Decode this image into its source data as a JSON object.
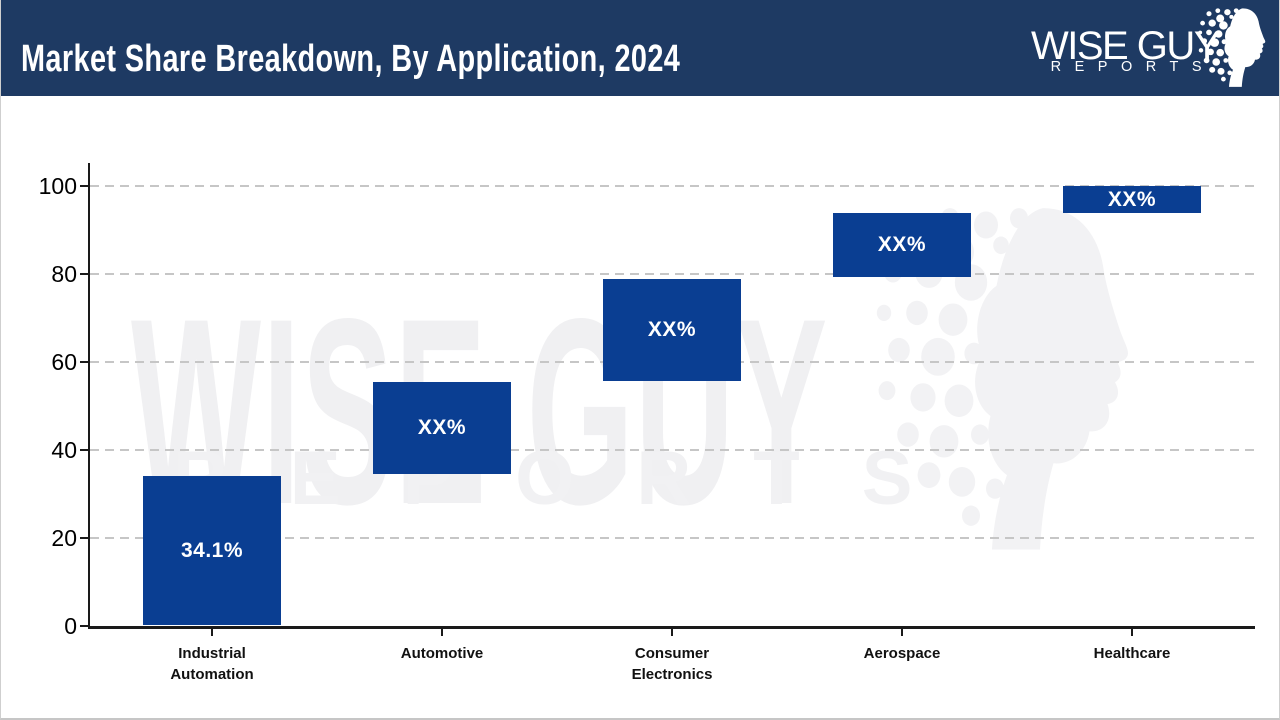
{
  "header": {
    "title": "Market Share Breakdown, By Application, 2024",
    "brand": {
      "name": "WISE GUY",
      "sub": "REPORTS",
      "head_icon": "head-profile-dots"
    },
    "background_color": "#1e3a63"
  },
  "watermark": {
    "line1": "WISE GUY",
    "line2": "REPORTS",
    "head_icon": "head-profile-dots",
    "color": "#f0f0f2"
  },
  "chart_data": {
    "type": "bar",
    "subtype": "waterfall-floating-bars",
    "title": "Market Share Breakdown, By Application, 2024",
    "xlabel": "",
    "ylabel": "",
    "ylim": [
      0,
      105
    ],
    "yticks": [
      0,
      20,
      40,
      60,
      80,
      100
    ],
    "grid": "horizontal-dashed",
    "legend": "none",
    "bar_color": "#0a3e92",
    "axis_color": "#1a1a1a",
    "grid_color": "#c6c6c6",
    "categories": [
      "Industrial\nAutomation",
      "Automotive",
      "Consumer\nElectronics",
      "Aerospace",
      "Healthcare"
    ],
    "bars": [
      {
        "category": "Industrial Automation",
        "start": 0,
        "end": 34.1,
        "label": "34.1%"
      },
      {
        "category": "Automotive",
        "start": 34.4,
        "end": 55.3,
        "label": "XX%"
      },
      {
        "category": "Consumer Electronics",
        "start": 55.6,
        "end": 78.9,
        "label": "XX%"
      },
      {
        "category": "Aerospace",
        "start": 79.4,
        "end": 93.9,
        "label": "XX%"
      },
      {
        "category": "Healthcare",
        "start": 93.9,
        "end": 99.9,
        "label": "XX%"
      }
    ]
  }
}
